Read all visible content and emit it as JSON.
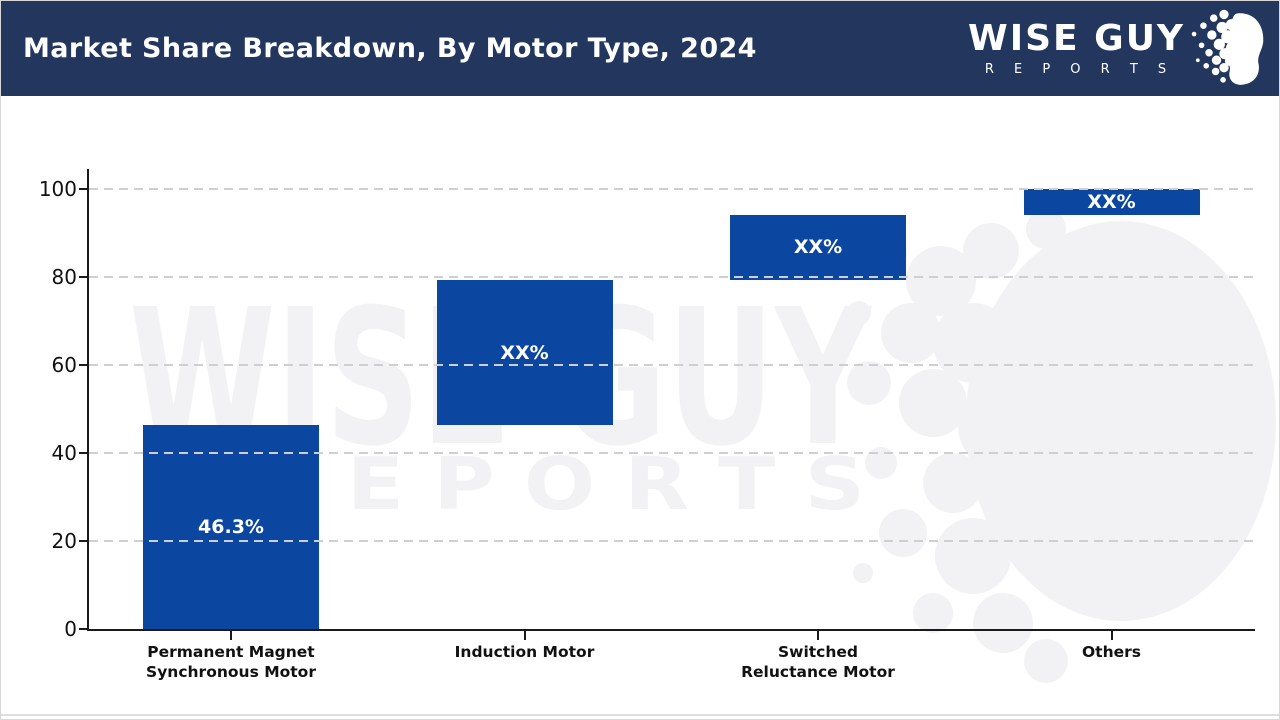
{
  "header": {
    "title": "Market Share Breakdown, By Motor Type, 2024",
    "logo": {
      "line1": "WISE GUY",
      "line2": "R E P O R T S"
    }
  },
  "watermark": {
    "line1": "WISE GUY",
    "line2": "R E P O R T S"
  },
  "colors": {
    "header_bg": "#22365E",
    "bar": "#0B47A0",
    "grid": "#cfcfcf",
    "axis": "#1a1a1a",
    "watermark": "#f2f2f4",
    "bar_label": "#ffffff"
  },
  "chart_data": {
    "type": "bar",
    "variant": "floating-waterfall",
    "title": "Market Share Breakdown, By Motor Type, 2024",
    "categories": [
      "Permanent Magnet Synchronous Motor",
      "Induction Motor",
      "Switched Reluctance Motor",
      "Others"
    ],
    "bars": [
      {
        "category": "Permanent Magnet Synchronous Motor",
        "lines": [
          "Permanent Magnet",
          "Synchronous Motor"
        ],
        "start": 0,
        "end": 46.3,
        "label": "46.3%"
      },
      {
        "category": "Induction Motor",
        "lines": [
          "Induction Motor"
        ],
        "start": 46.3,
        "end": 79.2,
        "label": "XX%"
      },
      {
        "category": "Switched Reluctance Motor",
        "lines": [
          "Switched",
          "Reluctance Motor"
        ],
        "start": 79.2,
        "end": 94.1,
        "label": "XX%"
      },
      {
        "category": "Others",
        "lines": [
          "Others"
        ],
        "start": 94.1,
        "end": 100,
        "label": "XX%"
      }
    ],
    "xlabel": "",
    "ylabel": "",
    "ylim": [
      0,
      100
    ],
    "yticks": [
      0,
      20,
      40,
      60,
      80,
      100
    ],
    "grid": "horizontal-dashed",
    "legend": "none",
    "bar_color": "#0B47A0",
    "label_color": "#ffffff"
  }
}
